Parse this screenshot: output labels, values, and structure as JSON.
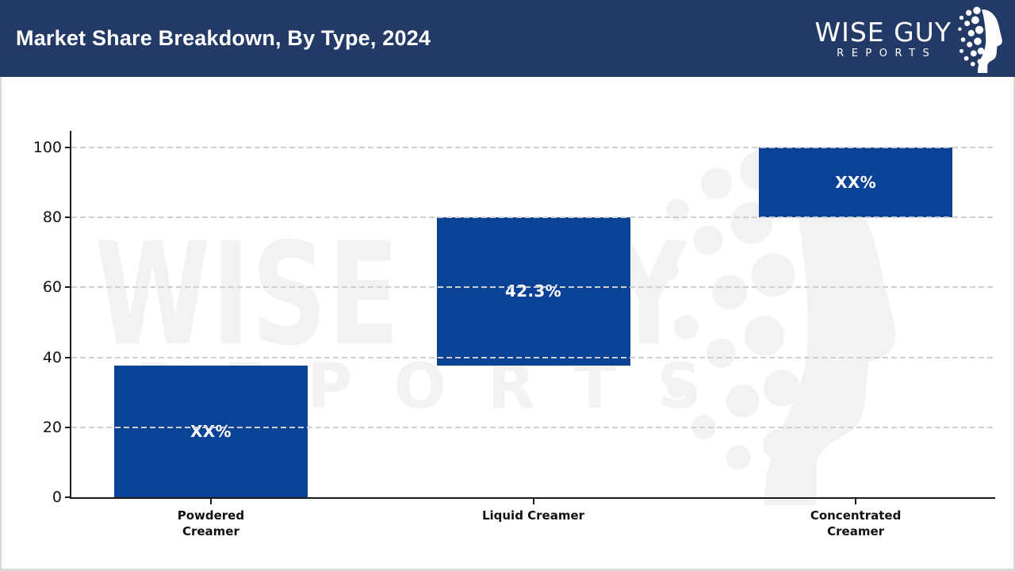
{
  "header": {
    "title": "Market Share Breakdown, By Type, 2024",
    "background_color": "#233a66",
    "logo": {
      "wordmark": "WISE GUY",
      "subtitle": "REPORTS"
    }
  },
  "watermark": {
    "wordmark": "WISE GUY",
    "subtitle": "REPORTS"
  },
  "chart_data": {
    "type": "bar",
    "subtype": "waterfall",
    "title": "Market Share Breakdown, By Type, 2024",
    "xlabel": "",
    "ylabel": "",
    "categories": [
      "Powdered Creamer",
      "Liquid Creamer",
      "Concentrated Creamer"
    ],
    "segments": [
      {
        "category": "Powdered Creamer",
        "start": 0,
        "end": 37.7,
        "label": "XX%"
      },
      {
        "category": "Liquid Creamer",
        "start": 37.7,
        "end": 80,
        "label": "42.3%"
      },
      {
        "category": "Concentrated Creamer",
        "start": 80,
        "end": 100,
        "label": "XX%"
      }
    ],
    "y_ticks": [
      0,
      20,
      40,
      60,
      80,
      100
    ],
    "ylim": [
      0,
      107
    ],
    "grid": "horizontal-dashed",
    "gridlines_above_bars": true,
    "legend": "none",
    "bar_color": "#0a4296",
    "bar_label_color": "#ffffff",
    "axis_color": "#1a1a1a",
    "grid_color": "#cfcfcf"
  }
}
